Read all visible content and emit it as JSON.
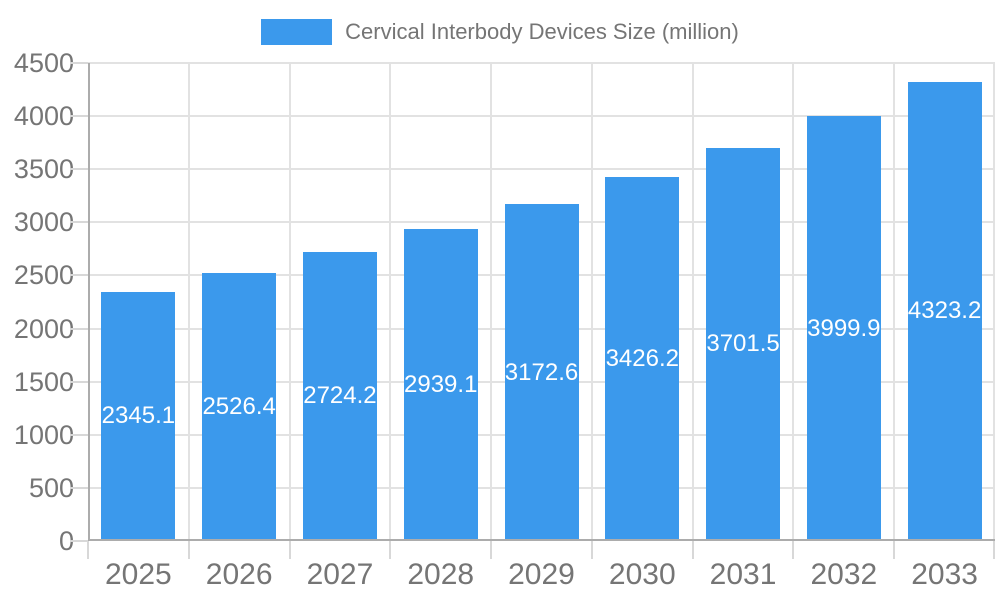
{
  "legend": {
    "label": "Cervical Interbody Devices Size (million)"
  },
  "chart_data": {
    "type": "bar",
    "title": "Cervical Interbody Devices Size (million)",
    "categories": [
      "2025",
      "2026",
      "2027",
      "2028",
      "2029",
      "2030",
      "2031",
      "2032",
      "2033"
    ],
    "series": [
      {
        "name": "Cervical Interbody Devices Size (million)",
        "values": [
          2345.1,
          2526.4,
          2724.2,
          2939.1,
          3172.6,
          3426.2,
          3701.5,
          3999.9,
          4323.2
        ]
      }
    ],
    "value_labels": [
      "2345.1",
      "2526.4",
      "2724.2",
      "2939.1",
      "3172.6",
      "3426.2",
      "3701.5",
      "3999.9",
      "4323.2"
    ],
    "xlabel": "",
    "ylabel": "",
    "ylim": [
      0,
      4500
    ],
    "yticks": [
      0,
      500,
      1000,
      1500,
      2000,
      2500,
      3000,
      3500,
      4000,
      4500
    ],
    "grid": true,
    "legend_position": "top-center",
    "value_label_placement": "inside-bar-middle",
    "colors": {
      "bar": "#3B99EC",
      "axis_text": "#757575",
      "value_label_text": "#FFFFFF",
      "gridline": "#E2E2E2",
      "axis_line": "#ACACAC",
      "tick_mark": "#D8D8D8",
      "background": "#FFFFFF"
    }
  }
}
